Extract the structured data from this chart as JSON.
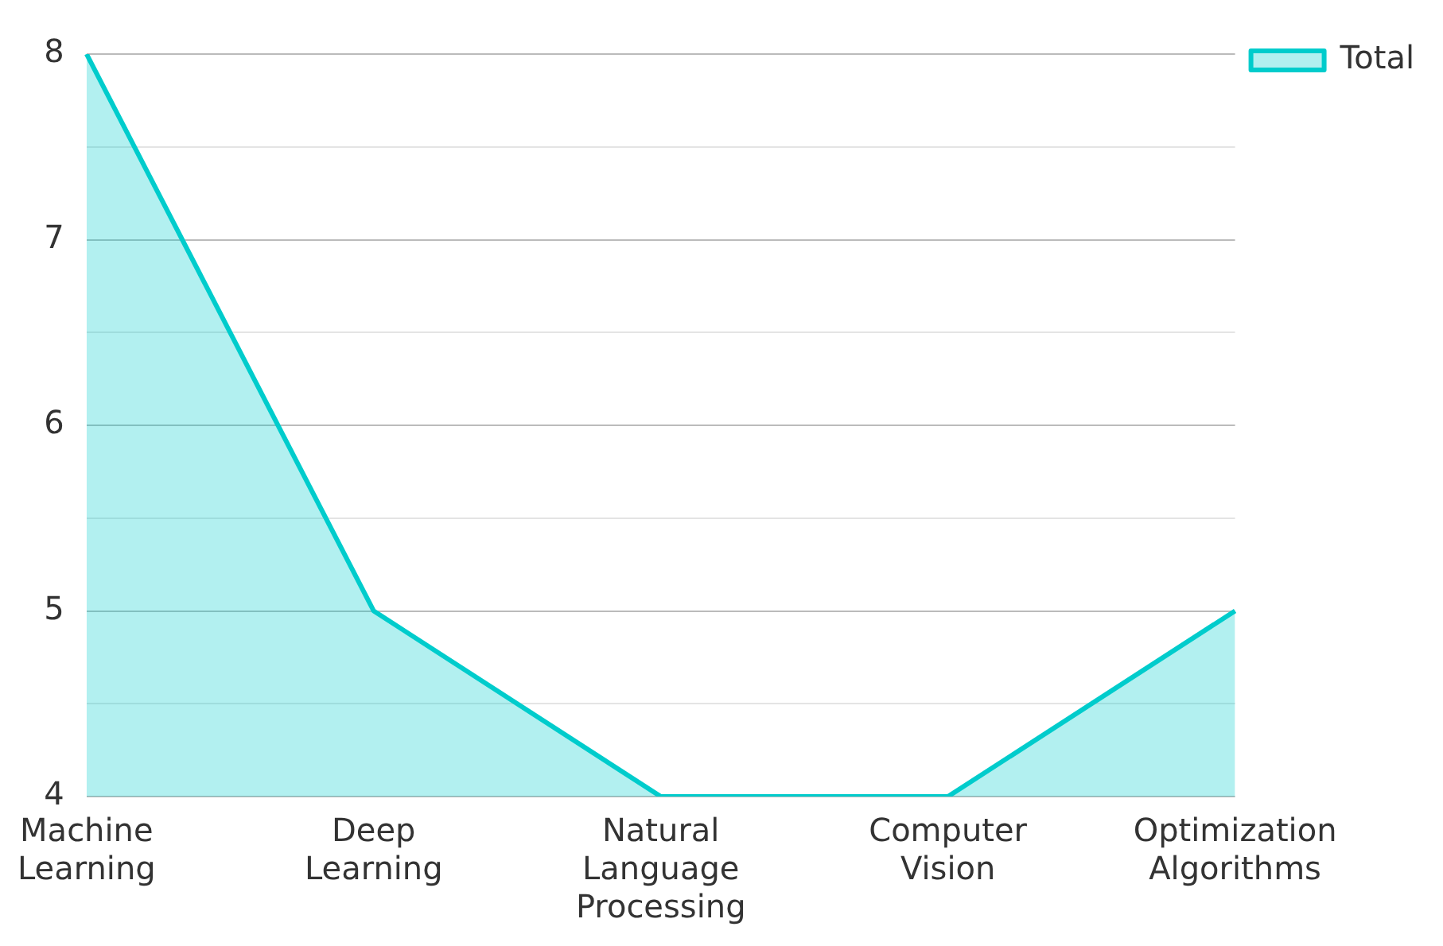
{
  "chart_data": {
    "type": "area",
    "categories": [
      "Machine Learning",
      "Deep Learning",
      "Natural Language Processing",
      "Computer Vision",
      "Optimization Algorithms"
    ],
    "series": [
      {
        "name": "Total",
        "color": "#00cccc",
        "values": [
          8,
          5,
          4,
          4,
          5
        ]
      }
    ],
    "ylim": [
      4,
      8
    ],
    "yticks": [
      4,
      {
        "value": 4.5,
        "label": null
      },
      5,
      {
        "value": 5.5,
        "label": null
      },
      6,
      {
        "value": 6.5,
        "label": null
      },
      7,
      {
        "value": 7.5,
        "label": null
      },
      8
    ],
    "grid": "y",
    "legend": "top right",
    "marker": "none",
    "line_style": "solid"
  }
}
